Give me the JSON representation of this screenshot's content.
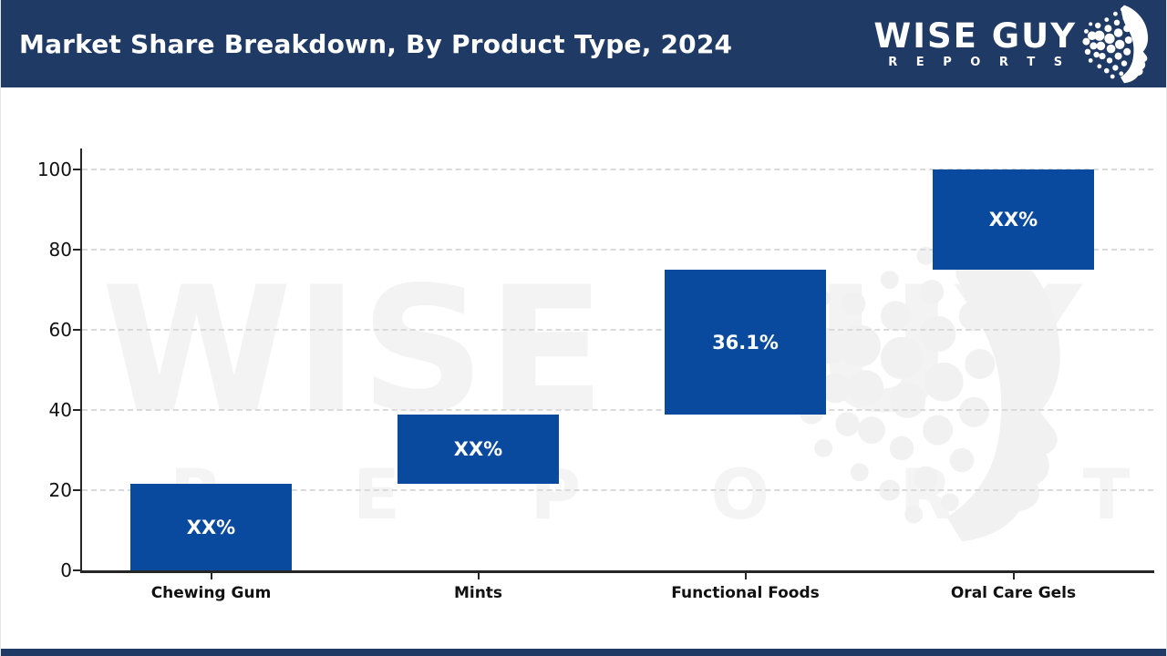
{
  "header": {
    "title": "Market Share Breakdown, By Product Type, 2024",
    "logo_line1": "WISE GUY",
    "logo_line2": "REPORTS"
  },
  "watermark": {
    "line1": "WISE GUY",
    "line2": "REPORTS"
  },
  "chart_data": {
    "type": "bar",
    "variant": "floating-waterfall-segments",
    "title": "Market Share Breakdown, By Product Type, 2024",
    "categories": [
      "Chewing Gum",
      "Mints",
      "Functional Foods",
      "Oral Care Gels"
    ],
    "segments": [
      {
        "category": "Chewing Gum",
        "start": 0,
        "end": 21.5,
        "label": "XX%"
      },
      {
        "category": "Mints",
        "start": 21.5,
        "end": 38.8,
        "label": "XX%"
      },
      {
        "category": "Functional Foods",
        "start": 38.8,
        "end": 74.9,
        "label": "36.1%"
      },
      {
        "category": "Oral Care Gels",
        "start": 74.9,
        "end": 100,
        "label": "XX%"
      }
    ],
    "yticks": [
      0,
      20,
      40,
      60,
      80,
      100
    ],
    "ylim": [
      0,
      105
    ],
    "xlabel": "",
    "ylabel": "",
    "legend": "none",
    "grid": "horizontal-dashed",
    "colors": {
      "bar": "#0a4a9e",
      "header": "#203a66",
      "grid": "#dadada",
      "axis": "#262626",
      "bar_label": "#ffffff",
      "watermark": "#f3f3f3"
    }
  }
}
